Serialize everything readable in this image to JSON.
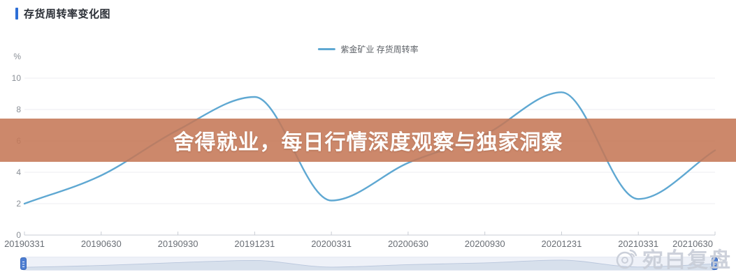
{
  "header": {
    "title": "存货周转率变化图"
  },
  "legend": {
    "label": "紫金矿业 存货周转率"
  },
  "banner": {
    "text": "舍得就业，每日行情深度观察与独家洞察"
  },
  "watermark": {
    "icon": "weibo-eye-logo",
    "text": "宛白复盘"
  },
  "colors": {
    "accent_blue": "#2e6fd6",
    "line_blue": "#5fa8d2",
    "banner_terracotta": "#c57756",
    "handle_blue": "#4d7ed2",
    "grid_gray": "#ededf0",
    "axis_gray": "#c9cdd4"
  },
  "chart_data": {
    "type": "line",
    "title": "存货周转率变化图",
    "unit": "%",
    "categories": [
      "20190331",
      "20190630",
      "20190930",
      "20191231",
      "20200331",
      "20200630",
      "20200930",
      "20201231",
      "20210331",
      "20210630"
    ],
    "series": [
      {
        "name": "紫金矿业 存货周转率",
        "values": [
          2.0,
          3.8,
          6.7,
          8.8,
          2.2,
          4.6,
          6.4,
          9.1,
          2.3,
          5.4
        ]
      }
    ],
    "xlabel": "",
    "ylabel": "%",
    "ylim": [
      0,
      10
    ],
    "yticks": [
      0,
      2,
      4,
      6,
      8,
      10
    ],
    "smooth": true,
    "grid": true,
    "line_color": "#5fa8d2",
    "legend_position": "top-center",
    "datazoom_slider": true
  }
}
